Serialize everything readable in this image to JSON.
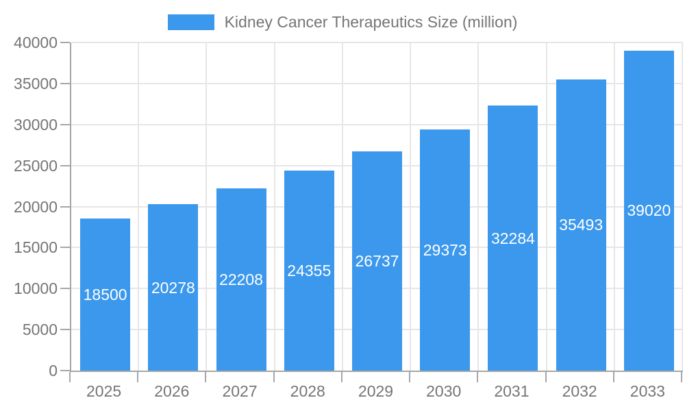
{
  "legend": {
    "label": "Kidney Cancer Therapeutics Size (million)"
  },
  "colors": {
    "bar": "#3b98ec",
    "grid": "#e6e6e6",
    "axis": "#a6a6a6",
    "axis_text": "#757575",
    "value_text": "#ffffff",
    "background": "#ffffff"
  },
  "chart_data": {
    "type": "bar",
    "title": "Kidney Cancer Therapeutics Size (million)",
    "categories": [
      "2025",
      "2026",
      "2027",
      "2028",
      "2029",
      "2030",
      "2031",
      "2032",
      "2033"
    ],
    "series": [
      {
        "name": "Kidney Cancer Therapeutics Size (million)",
        "values": [
          18500,
          20278,
          22208,
          24355,
          26737,
          29373,
          32284,
          35493,
          39020
        ]
      }
    ],
    "xlabel": "",
    "ylabel": "",
    "ylim": [
      0,
      40000
    ],
    "yticks": [
      0,
      5000,
      10000,
      15000,
      20000,
      25000,
      30000,
      35000,
      40000
    ],
    "grid": true,
    "legend_position": "top",
    "value_labels": "centered-in-bar"
  }
}
